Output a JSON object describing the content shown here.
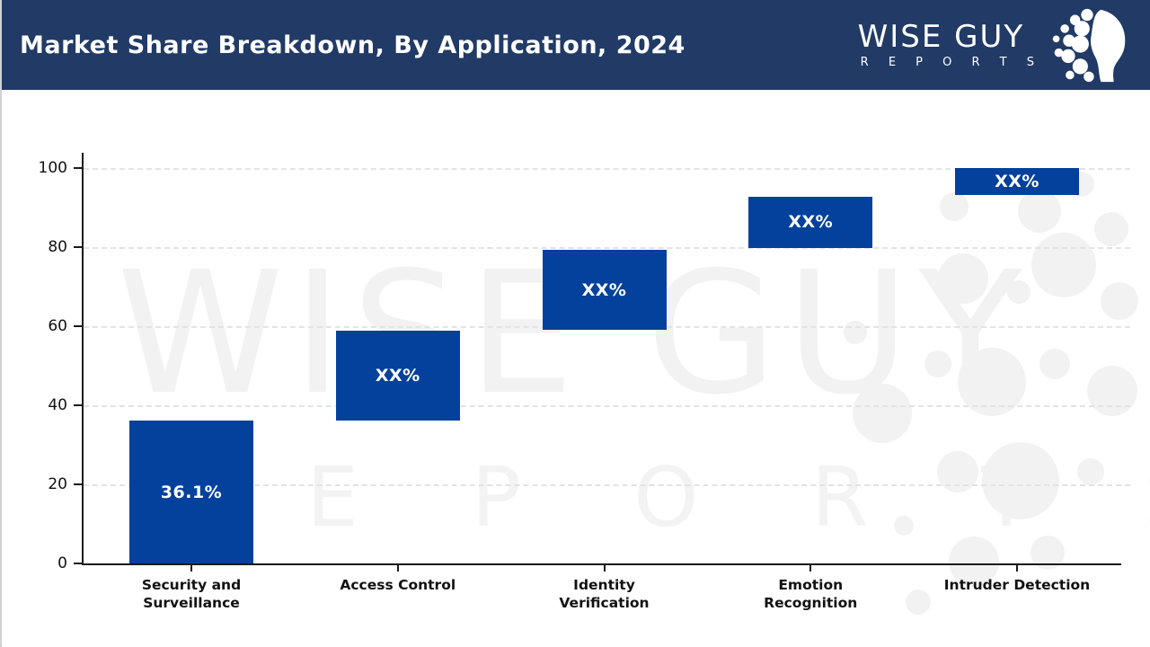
{
  "header": {
    "title": "Market Share Breakdown, By Application, 2024",
    "background_color": "#213a66",
    "logo": {
      "line1": "WISE GUY",
      "line2": "R E P O R T S",
      "face_icon": "dotted-head-profile"
    }
  },
  "watermark": {
    "line1": "WISE GUY",
    "line2": "R E P O R T S"
  },
  "chart_data": {
    "type": "bar",
    "subtype": "waterfall",
    "title": "Market Share Breakdown, By Application, 2024",
    "xlabel": "",
    "ylabel": "",
    "ylim": [
      0,
      105
    ],
    "y_ticks": [
      0,
      20,
      40,
      60,
      80,
      100
    ],
    "grid": "horizontal-dashed",
    "legend": "none",
    "bar_color": "#04419c",
    "value_label_color": "#ffffff",
    "categories": [
      [
        "Security and",
        "Surveillance"
      ],
      [
        "Access Control"
      ],
      [
        "Identity",
        "Verification"
      ],
      [
        "Emotion",
        "Recognition"
      ],
      [
        "Intruder Detection"
      ]
    ],
    "segments": [
      {
        "name": "Security and Surveillance",
        "start": 0,
        "end": 36.1,
        "label": "36.1%"
      },
      {
        "name": "Access Control",
        "start": 36.1,
        "end": 58.9,
        "label": "XX%"
      },
      {
        "name": "Identity Verification",
        "start": 59.1,
        "end": 79.3,
        "label": "XX%"
      },
      {
        "name": "Emotion Recognition",
        "start": 79.8,
        "end": 92.7,
        "label": "XX%"
      },
      {
        "name": "Intruder Detection",
        "start": 93.2,
        "end": 100,
        "label": "XX%"
      }
    ]
  }
}
